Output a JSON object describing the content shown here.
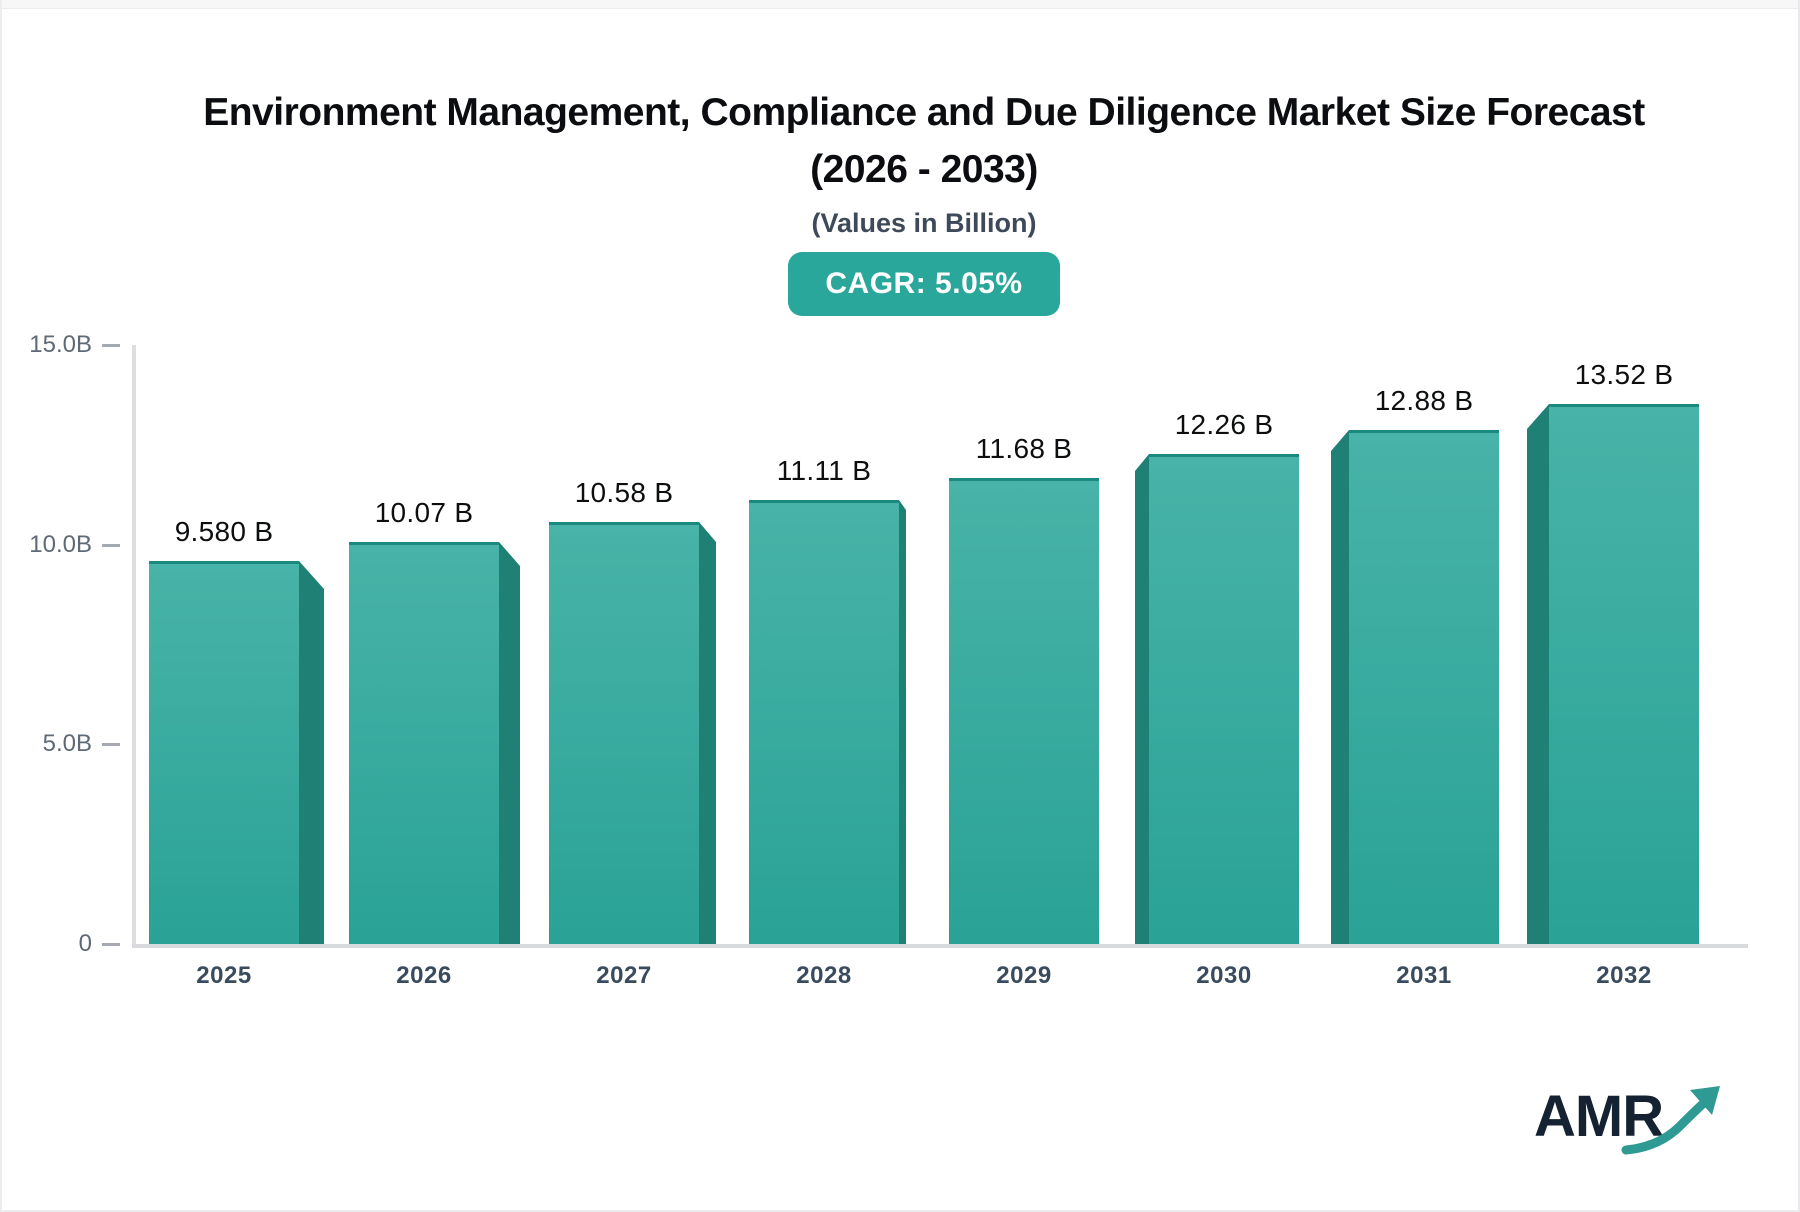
{
  "header": {
    "title_line1": "Environment Management, Compliance and Due Diligence Market Size Forecast",
    "title_line2": "(2026 - 2033)",
    "subtitle": "(Values in Billion)",
    "cagr_badge": "CAGR: 5.05%"
  },
  "chart_data": {
    "type": "bar",
    "title": "Environment Management, Compliance and Due Diligence Market Size Forecast (2026 - 2033)",
    "subtitle": "(Values in Billion)",
    "cagr_percent": 5.05,
    "categories": [
      "2025",
      "2026",
      "2027",
      "2028",
      "2029",
      "2030",
      "2031",
      "2032"
    ],
    "values": [
      9.58,
      10.07,
      10.58,
      11.11,
      11.68,
      12.26,
      12.88,
      13.52
    ],
    "value_labels": [
      "9.580 B",
      "10.07 B",
      "10.58 B",
      "11.11 B",
      "11.68 B",
      "12.26 B",
      "12.88 B",
      "13.52 B"
    ],
    "unit": "Billion",
    "ylim": [
      0,
      15
    ],
    "yticks": [
      {
        "value": 0,
        "label": "0"
      },
      {
        "value": 5,
        "label": "5.0B"
      },
      {
        "value": 10,
        "label": "10.0B"
      },
      {
        "value": 15,
        "label": "15.0B"
      }
    ],
    "grid": false,
    "legend": "none",
    "bar_color_top": "#48b3a8",
    "bar_color_bottom": "#2aa296",
    "bar_side_color": "#1f8176",
    "bar_top_edge_color": "#1b8a7e"
  },
  "colors": {
    "badge_bg": "#2aa79b",
    "accent_teal": "#2aa79b",
    "logo_arrow": "#2f9a93"
  },
  "branding": {
    "logo_text": "AMR"
  }
}
